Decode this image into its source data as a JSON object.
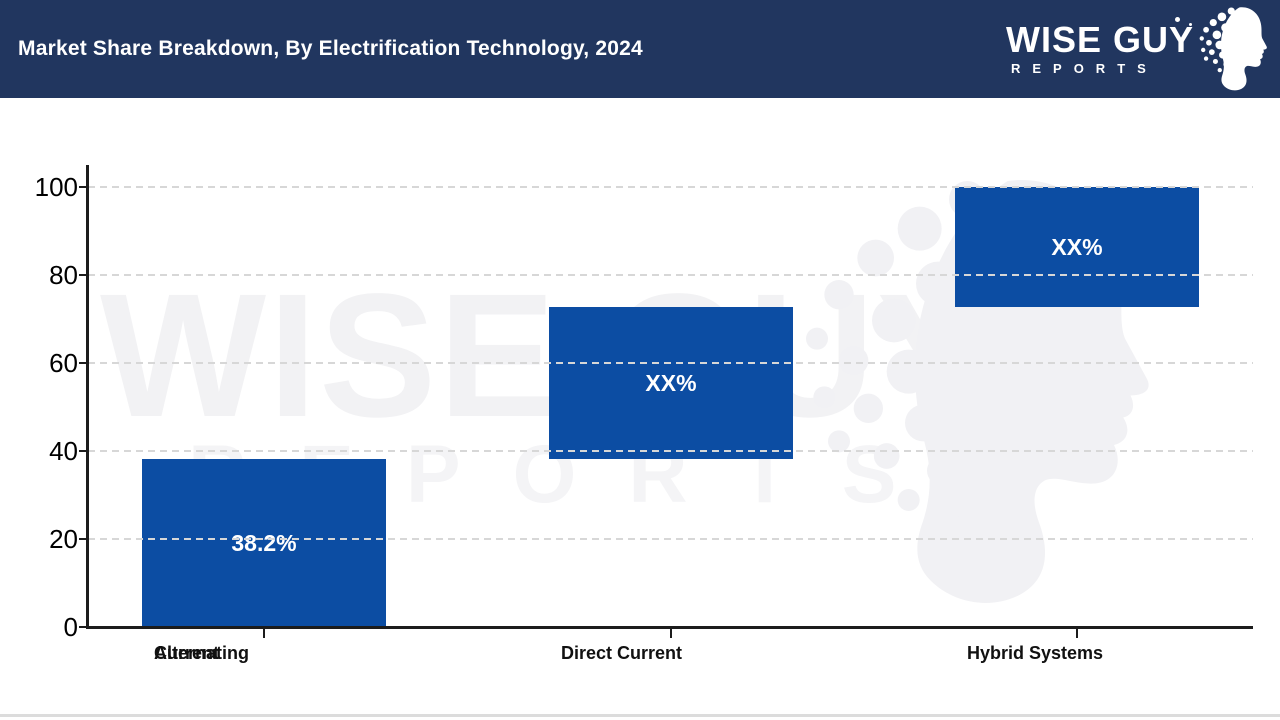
{
  "header": {
    "title": "Market Share Breakdown, By Electrification Technology, 2024",
    "background": "#21365f",
    "logo": {
      "wordmark": "WISE GUY",
      "subtitle": "REPORTS"
    }
  },
  "watermark": {
    "wordmark": "WISE GUY",
    "subtitle": "REPORTS"
  },
  "chart_data": {
    "type": "bar",
    "subtype": "waterfall",
    "title": "Market Share Breakdown, By Electrification Technology, 2024",
    "categories": [
      "Alternating Current",
      "Direct Current",
      "Hybrid Systems"
    ],
    "category_lines": [
      [
        "Alternating",
        "Current"
      ],
      [
        "Direct Current"
      ],
      [
        "Hybrid Systems"
      ]
    ],
    "series": [
      {
        "name": "Market share (%)",
        "segments": [
          {
            "category": "Alternating Current",
            "start": 0,
            "end": 38.2,
            "label": "38.2%"
          },
          {
            "category": "Direct Current",
            "start": 38.2,
            "end": 72.7,
            "label": "XX%"
          },
          {
            "category": "Hybrid Systems",
            "start": 72.7,
            "end": 100,
            "label": "XX%"
          }
        ]
      }
    ],
    "xlabel": "",
    "ylabel": "",
    "yticks": [
      0,
      20,
      40,
      60,
      80,
      100
    ],
    "ylim": [
      0,
      105
    ],
    "bar_color": "#0c4da3",
    "grid": "horizontal-dashed",
    "gridline_color": "#d7d7d7",
    "axis_color": "#1c1c1c",
    "legend": "none"
  }
}
